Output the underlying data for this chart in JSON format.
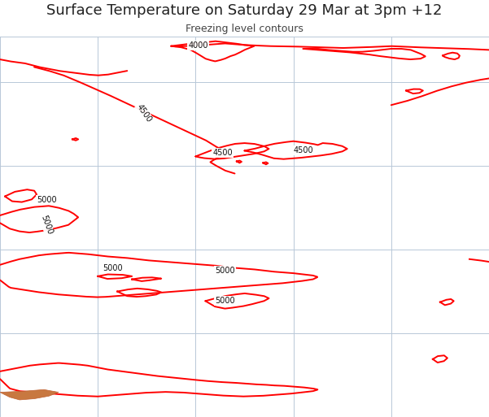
{
  "title": "Surface Temperature on Saturday 29 Mar at 3pm +12",
  "subtitle": "Freezing level contours",
  "title_fontsize": 13,
  "subtitle_fontsize": 9,
  "map_bg_color": "#d8dff0",
  "header_bg_color": "#ffffff",
  "contour_color": "#ff0000",
  "contour_linewidth": 1.4,
  "grid_color": "#b8c8d8",
  "grid_linewidth": 0.7,
  "label_fontsize": 7,
  "figsize": [
    6.01,
    5.13
  ],
  "dpi": 100
}
